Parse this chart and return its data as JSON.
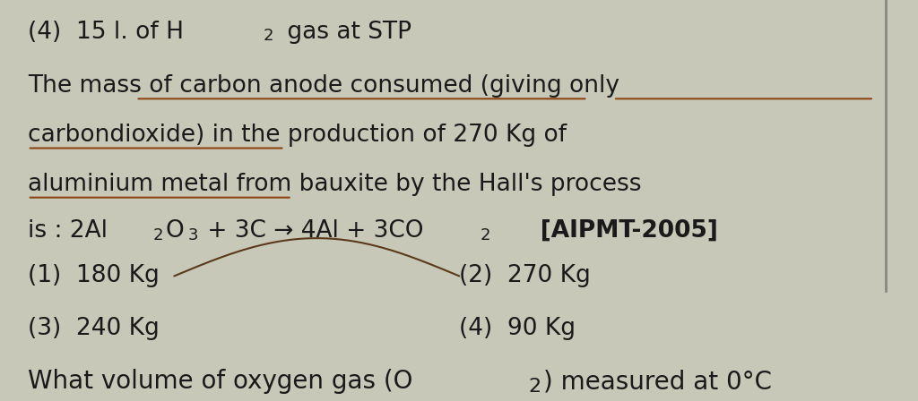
{
  "bg_color": "#c8c8b8",
  "text_color": "#1a1a1a",
  "underline_color": "#8B4513",
  "curve_color": "#5a3a1a",
  "border_color": "#888888",
  "font_size_main": 19,
  "font_size_sub": 13,
  "font_size_bottom": 20,
  "font_size_bottom_sub": 16,
  "line1_part1": "(4)  15 l. of H",
  "line1_sub": "2",
  "line1_part2": " gas at STP",
  "para1": "The mass of carbon anode consumed (giving only",
  "para2": "carbondioxide) in the production of 270 Kg of",
  "para3": "aluminium metal from bauxite by the Hall's process",
  "eq_part1": "is : 2Al",
  "eq_sub1": "2",
  "eq_part2": "O",
  "eq_sub2": "3",
  "eq_part3": " + 3C → 4Al + 3CO",
  "eq_sub3": "2",
  "eq_ref": "      [AIPMT-2005]",
  "opt1": "(1)  180 Kg",
  "opt2": "(2)  270 Kg",
  "opt3": "(3)  240 Kg",
  "opt4": "(4)  90 Kg",
  "bottom_part1": "What volume of oxygen gas (O",
  "bottom_sub": "2",
  "bottom_part2": ") measured at 0°C"
}
